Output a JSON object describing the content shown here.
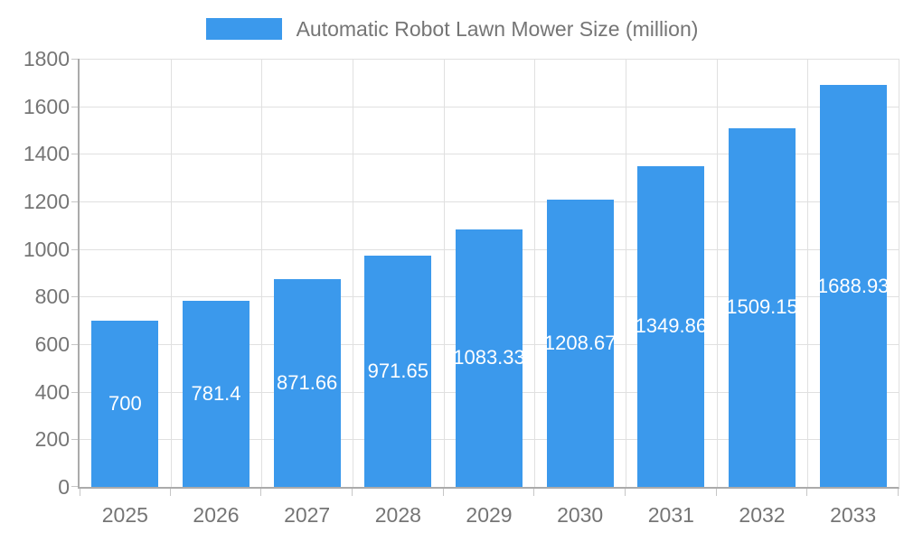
{
  "legend": {
    "label": "Automatic Robot Lawn Mower Size (million)"
  },
  "colors": {
    "background": "#ffffff",
    "bar": "#3b99ec",
    "grid": "#e0e0e0",
    "axis": "#ababab",
    "tick": "#c6c6c6",
    "label_text": "#757575",
    "value_text": "#ffffff"
  },
  "chart_data": {
    "type": "bar",
    "title": "Automatic Robot Lawn Mower Size (million)",
    "categories": [
      "2025",
      "2026",
      "2027",
      "2028",
      "2029",
      "2030",
      "2031",
      "2032",
      "2033"
    ],
    "series": [
      {
        "name": "Automatic Robot Lawn Mower Size (million)",
        "values": [
          700,
          781.4,
          871.66,
          971.65,
          1083.33,
          1208.67,
          1349.86,
          1509.15,
          1688.93
        ]
      }
    ],
    "value_labels": [
      "700",
      "781.4",
      "871.66",
      "971.65",
      "1083.33",
      "1208.67",
      "1349.86",
      "1509.15",
      "1688.93"
    ],
    "xlabel": "",
    "ylabel": "",
    "ylim": [
      0,
      1800
    ],
    "yticks": [
      0,
      200,
      400,
      600,
      800,
      1000,
      1200,
      1400,
      1600,
      1800
    ],
    "grid": true,
    "legend_position": "top",
    "bar_label_position": "center-inside",
    "bar_label_color": "#ffffff"
  }
}
